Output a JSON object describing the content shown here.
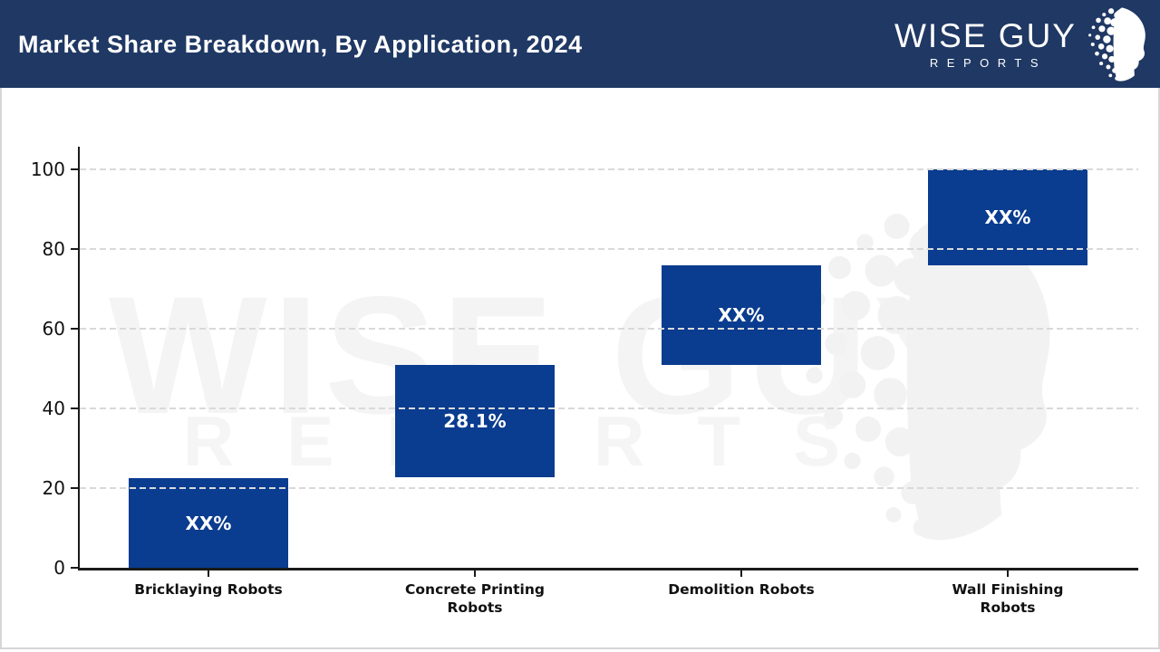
{
  "header": {
    "title": "Market Share Breakdown, By Application, 2024",
    "logo": {
      "line1": "WISE GUY",
      "line2": "REPORTS"
    }
  },
  "watermark": {
    "line1": "WISE GUY",
    "line2": "REPORTS"
  },
  "chart_data": {
    "type": "bar",
    "variant": "floating-step-bars",
    "title": "Market Share Breakdown, By Application, 2024",
    "categories": [
      "Bricklaying Robots",
      "Concrete Printing\nRobots",
      "Demolition Robots",
      "Wall Finishing\nRobots"
    ],
    "segments": [
      {
        "category": "Bricklaying Robots",
        "start": 0,
        "end": 22.5,
        "label": "XX%"
      },
      {
        "category": "Concrete Printing Robots",
        "start": 22.7,
        "end": 50.8,
        "label": "28.1%"
      },
      {
        "category": "Demolition Robots",
        "start": 50.8,
        "end": 76.0,
        "label": "XX%"
      },
      {
        "category": "Wall Finishing Robots",
        "start": 76.0,
        "end": 100.0,
        "label": "XX%"
      }
    ],
    "yticks": [
      0,
      20,
      40,
      60,
      80,
      100
    ],
    "ylim": [
      0,
      106
    ],
    "xlabel": "",
    "ylabel": "",
    "grid": true,
    "grid_style": "dashed",
    "legend": false,
    "bar_color": "#0a3c8f",
    "bar_label_color": "#ffffff",
    "axis_color": "#1a1a1a",
    "grid_color": "#d9d9d9"
  },
  "colors": {
    "header_bg": "#1f3864",
    "panel_border": "#d6d6d6",
    "watermark": "#f4f4f4"
  }
}
